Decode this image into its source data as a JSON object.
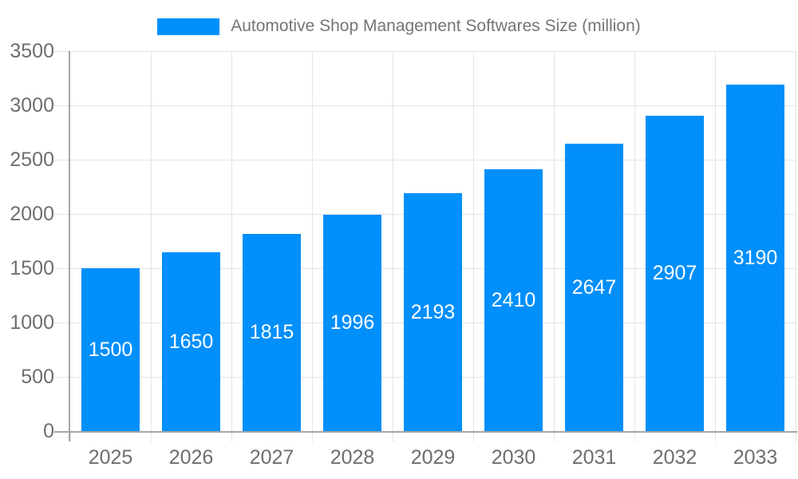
{
  "chart_data": {
    "type": "bar",
    "title": "Automotive Shop Management Softwares Size (million)",
    "legend_entries": [
      "Automotive Shop Management Softwares Size (million)"
    ],
    "legend_position": "top",
    "categories": [
      "2025",
      "2026",
      "2027",
      "2028",
      "2029",
      "2030",
      "2031",
      "2032",
      "2033"
    ],
    "values": [
      1500,
      1650,
      1815,
      1996,
      2193,
      2410,
      2647,
      2907,
      3190
    ],
    "xlabel": "",
    "ylabel": "",
    "ylim": [
      0,
      3500
    ],
    "yticks": [
      0,
      500,
      1000,
      1500,
      2000,
      2500,
      3000,
      3500
    ],
    "grid": true,
    "value_labels_shown": true,
    "colors": {
      "bar": "#008FFB",
      "value_label": "#ffffff",
      "axis_label": "#6e6e6e",
      "legend_text": "#757575",
      "gridline": "#e4e4e4",
      "axis_line": "#a6a6a6"
    }
  }
}
